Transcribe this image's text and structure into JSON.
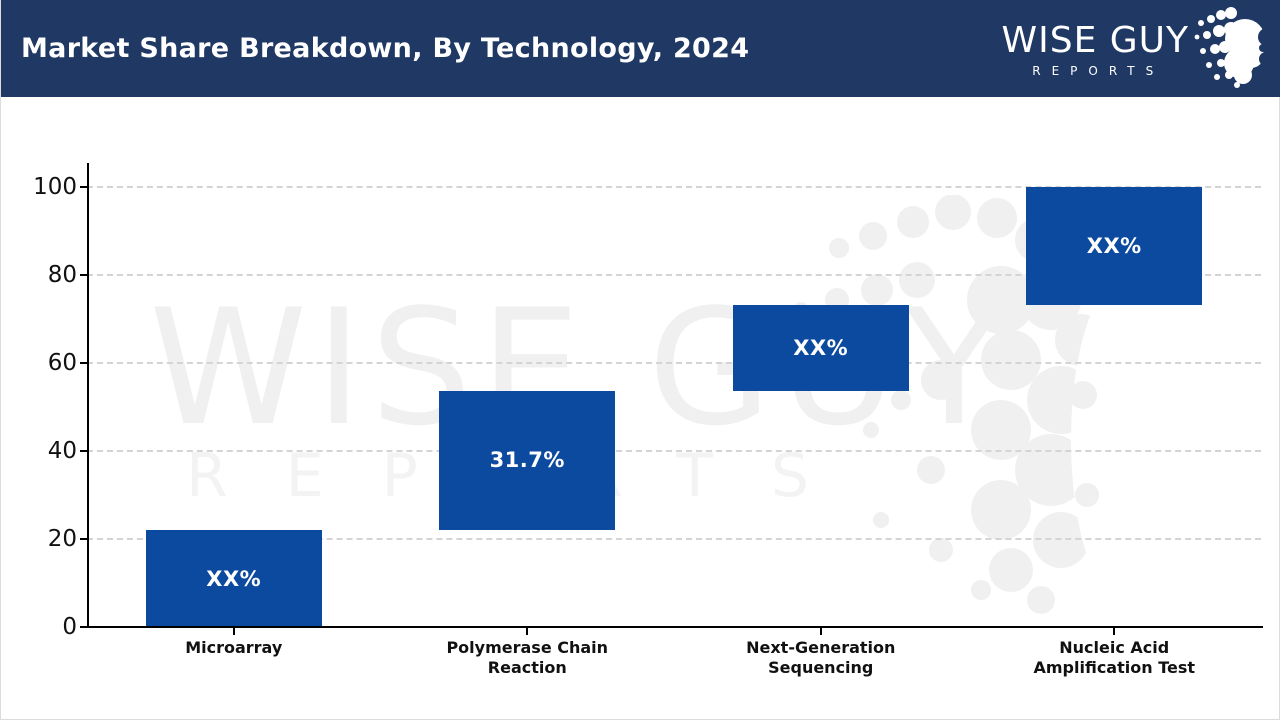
{
  "header": {
    "title": "Market Share Breakdown, By Technology, 2024",
    "logo": {
      "name": "WISE GUY",
      "tagline": "REPORTS"
    }
  },
  "watermark": {
    "name": "WISE GUY",
    "tagline": "REPORTS"
  },
  "chart_data": {
    "type": "bar",
    "variant": "waterfall",
    "title": "Market Share Breakdown, By Technology, 2024",
    "categories": [
      "Microarray",
      "Polymerase Chain Reaction",
      "Next-Generation Sequencing",
      "Nucleic Acid Amplification Test"
    ],
    "bars": [
      {
        "category_lines": [
          "Microarray"
        ],
        "start": 0,
        "end": 22,
        "height": 22,
        "value_label": "XX%"
      },
      {
        "category_lines": [
          "Polymerase Chain",
          "Reaction"
        ],
        "start": 22,
        "end": 53.7,
        "height": 31.7,
        "value_label": "31.7%"
      },
      {
        "category_lines": [
          "Next-Generation",
          "Sequencing"
        ],
        "start": 53.7,
        "end": 73.1,
        "height": 19.4,
        "value_label": "XX%"
      },
      {
        "category_lines": [
          "Nucleic Acid",
          "Amplification Test"
        ],
        "start": 73.1,
        "end": 100,
        "height": 26.9,
        "value_label": "XX%"
      }
    ],
    "yticks": [
      0,
      20,
      40,
      60,
      80,
      100
    ],
    "ylim": [
      0,
      105
    ],
    "xlabel": "",
    "ylabel": "",
    "grid": "horizontal-dashed",
    "legend_position": "none",
    "bar_color": "#0c4aa0"
  },
  "colors": {
    "header_bg": "#1f3864",
    "bar": "#0c4aa0",
    "bar_label": "#ffffff",
    "grid_line": "#d4d4d4",
    "axis": "#000000",
    "watermark": "#f0f0f0"
  }
}
